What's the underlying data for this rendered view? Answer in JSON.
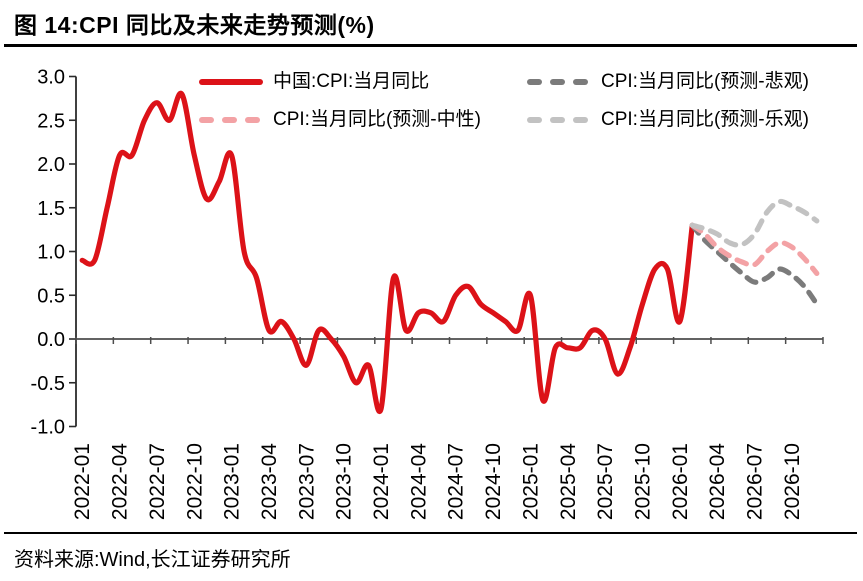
{
  "header": {
    "title": "图 14:CPI 同比及未来走势预测(%)"
  },
  "footer": {
    "source": "资料来源:Wind,长江证券研究所"
  },
  "colors": {
    "actual": "#DC1218",
    "pessimistic": "#7B7B7B",
    "neutral": "#F3A2A5",
    "optimistic": "#C2C2C2",
    "y_axis": "#2b2b2b",
    "x_axis": "#4d4d4d",
    "text": "#000000"
  },
  "legend": [
    {
      "label": "中国:CPI:当月同比",
      "color": "#DC1218",
      "style": "solid"
    },
    {
      "label": "CPI:当月同比(预测-悲观)",
      "color": "#7B7B7B",
      "style": "dashed"
    },
    {
      "label": "CPI:当月同比(预测-中性)",
      "color": "#F3A2A5",
      "style": "dashed"
    },
    {
      "label": "CPI:当月同比(预测-乐观)",
      "color": "#C2C2C2",
      "style": "dashed"
    }
  ],
  "chart_data": {
    "type": "line",
    "title": "CPI 同比及未来走势预测(%)",
    "xlabel": "",
    "ylabel": "",
    "x_start": "2022-01",
    "x_end": "2026-12",
    "x_tick_labels": [
      "2022-01",
      "2022-04",
      "2022-07",
      "2022-10",
      "2023-01",
      "2023-04",
      "2023-07",
      "2023-10",
      "2024-01",
      "2024-04",
      "2024-07",
      "2024-10",
      "2025-01",
      "2025-04",
      "2025-07",
      "2025-10",
      "2026-01",
      "2026-04",
      "2026-07",
      "2026-10"
    ],
    "ylim": [
      -1.0,
      3.0
    ],
    "y_ticks": [
      3.0,
      2.5,
      2.0,
      1.5,
      1.0,
      0.5,
      0.0,
      -0.5,
      -1.0
    ],
    "grid": false,
    "legend_position": "top",
    "series": [
      {
        "name": "中国:CPI:当月同比",
        "style": "solid",
        "color": "#DC1218",
        "start": "2022-01",
        "values": [
          0.9,
          0.9,
          1.5,
          2.1,
          2.1,
          2.5,
          2.7,
          2.5,
          2.8,
          2.1,
          1.6,
          1.8,
          2.1,
          1.0,
          0.7,
          0.1,
          0.2,
          0.0,
          -0.3,
          0.1,
          0.0,
          -0.2,
          -0.5,
          -0.3,
          -0.8,
          0.7,
          0.1,
          0.3,
          0.3,
          0.2,
          0.5,
          0.6,
          0.4,
          0.3,
          0.2,
          0.1,
          0.5,
          -0.7,
          -0.1,
          -0.1,
          -0.1,
          0.1,
          0.0,
          -0.4,
          -0.1,
          0.4,
          0.8,
          0.8,
          0.2,
          1.3
        ]
      },
      {
        "name": "CPI:当月同比(预测-悲观)",
        "style": "dashed",
        "color": "#7B7B7B",
        "start": "2026-02",
        "values": [
          1.3,
          1.13,
          1.0,
          0.87,
          0.75,
          0.65,
          0.7,
          0.8,
          0.73,
          0.6,
          0.4
        ]
      },
      {
        "name": "CPI:当月同比(预测-中性)",
        "style": "dashed",
        "color": "#F3A2A5",
        "start": "2026-02",
        "values": [
          1.3,
          1.2,
          1.05,
          0.95,
          0.88,
          0.85,
          1.0,
          1.1,
          1.05,
          0.92,
          0.75
        ]
      },
      {
        "name": "CPI:当月同比(预测-乐观)",
        "style": "dashed",
        "color": "#C2C2C2",
        "start": "2026-02",
        "values": [
          1.3,
          1.26,
          1.2,
          1.1,
          1.08,
          1.2,
          1.45,
          1.57,
          1.52,
          1.45,
          1.35
        ]
      }
    ]
  }
}
